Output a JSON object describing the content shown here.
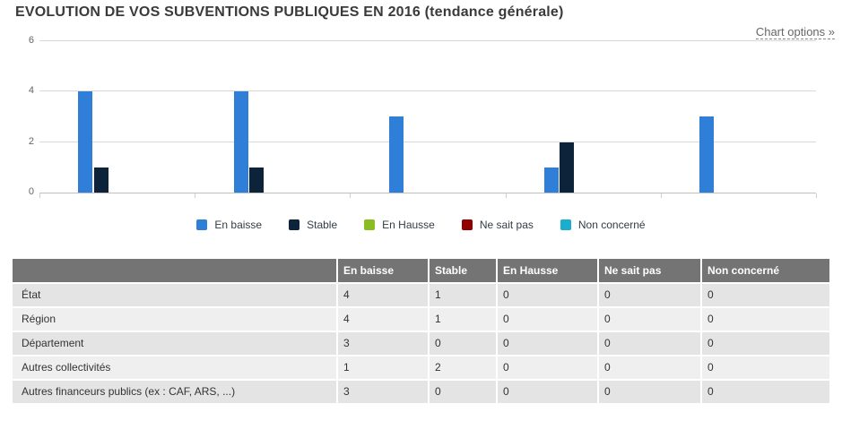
{
  "title": "EVOLUTION DE VOS SUBVENTIONS PUBLIQUES EN 2016 (tendance générale)",
  "chart_options_label": "Chart options »",
  "chart_data": {
    "type": "bar",
    "categories": [
      "État",
      "Région",
      "Département",
      "Autres collectivités",
      "Autres financeurs publics (ex : CAF, ARS, ...)"
    ],
    "series": [
      {
        "name": "En baisse",
        "color": "#2f7ed8",
        "values": [
          4,
          4,
          3,
          1,
          3
        ]
      },
      {
        "name": "Stable",
        "color": "#0d233a",
        "values": [
          1,
          1,
          0,
          2,
          0
        ]
      },
      {
        "name": "En Hausse",
        "color": "#8bbc21",
        "values": [
          0,
          0,
          0,
          0,
          0
        ]
      },
      {
        "name": "Ne sait pas",
        "color": "#910000",
        "values": [
          0,
          0,
          0,
          0,
          0
        ]
      },
      {
        "name": "Non concerné",
        "color": "#1aadce",
        "values": [
          0,
          0,
          0,
          0,
          0
        ]
      }
    ],
    "title": "EVOLUTION DE VOS SUBVENTIONS PUBLIQUES EN 2016 (tendance générale)",
    "xlabel": "",
    "ylabel": "",
    "ylim": [
      0,
      6
    ],
    "yticks": [
      0,
      2,
      4,
      6
    ],
    "grid": true,
    "legend_position": "bottom"
  },
  "table": {
    "columns": [
      "",
      "En baisse",
      "Stable",
      "En Hausse",
      "Ne sait pas",
      "Non concerné"
    ],
    "rows": [
      {
        "label": "État",
        "values": [
          "4",
          "1",
          "0",
          "0",
          "0"
        ]
      },
      {
        "label": "Région",
        "values": [
          "4",
          "1",
          "0",
          "0",
          "0"
        ]
      },
      {
        "label": "Département",
        "values": [
          "3",
          "0",
          "0",
          "0",
          "0"
        ]
      },
      {
        "label": "Autres collectivités",
        "values": [
          "1",
          "2",
          "0",
          "0",
          "0"
        ]
      },
      {
        "label": "Autres financeurs publics (ex : CAF, ARS, ...)",
        "values": [
          "3",
          "0",
          "0",
          "0",
          "0"
        ]
      }
    ]
  },
  "colors": {
    "gridline": "#d8d8d8",
    "axis_line": "#c0c0c0",
    "tick": "#c0d0e0",
    "table_header_bg": "#747474",
    "row_dark": "#e4e4e4",
    "row_light": "#efefef"
  }
}
